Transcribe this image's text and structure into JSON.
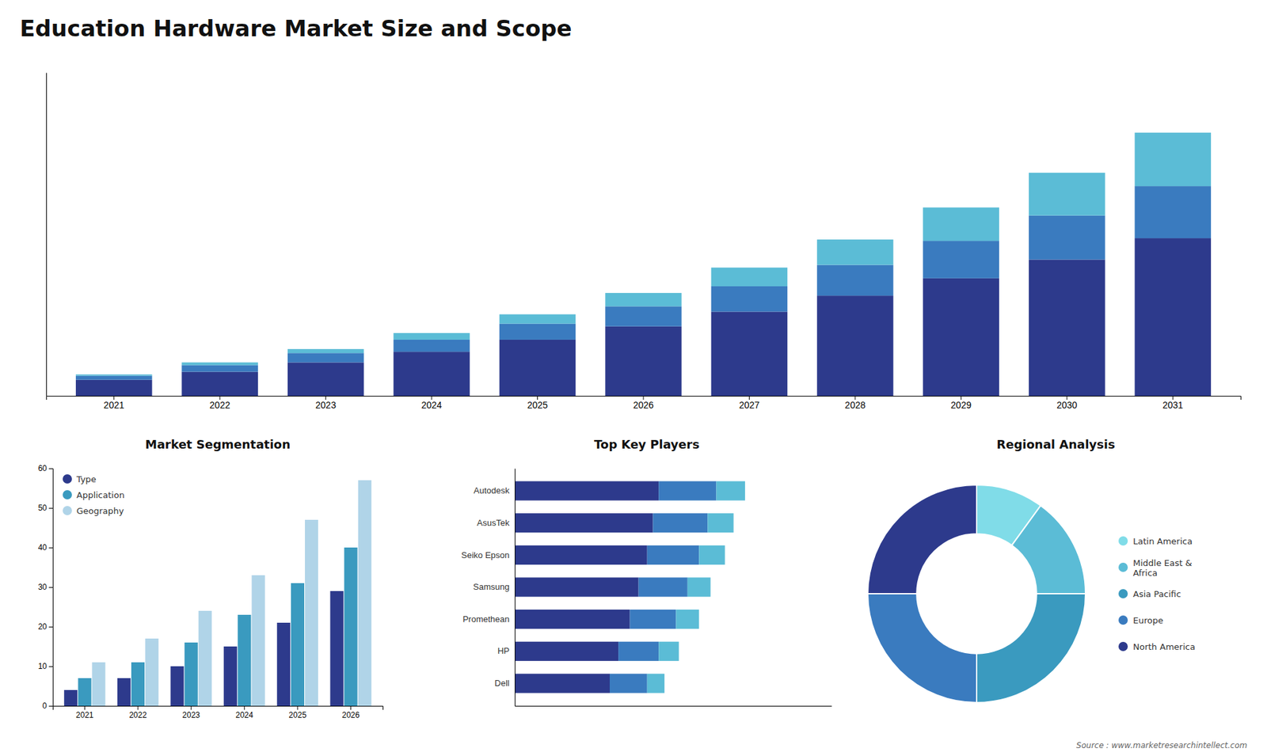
{
  "chart_data": [
    {
      "type": "bar",
      "title": "Education Hardware Market Size and Scope",
      "stacked": true,
      "categories": [
        "2021",
        "2022",
        "2023",
        "2024",
        "2025",
        "2026",
        "2027",
        "2028",
        "2029",
        "2030",
        "2031"
      ],
      "series": [
        {
          "color": "#2d3a8c",
          "values": [
            1.2,
            1.8,
            2.5,
            3.3,
            4.2,
            5.2,
            6.3,
            7.5,
            8.8,
            10.2,
            11.8
          ]
        },
        {
          "color": "#3a7bbf",
          "values": [
            0.3,
            0.5,
            0.7,
            0.9,
            1.2,
            1.5,
            1.9,
            2.3,
            2.8,
            3.3,
            3.9
          ]
        },
        {
          "color": "#5bbcd6",
          "values": [
            0.1,
            0.2,
            0.3,
            0.5,
            0.7,
            1.0,
            1.4,
            1.9,
            2.5,
            3.2,
            4.0
          ]
        }
      ],
      "ylim": [
        0,
        24.2
      ],
      "tick_labels": "x",
      "grid": false,
      "annotations": [
        "Source : www.marketresearchintellect.com"
      ]
    },
    {
      "type": "bar",
      "title": "Market Segmentation",
      "categories": [
        "2021",
        "2022",
        "2023",
        "2024",
        "2025",
        "2026"
      ],
      "series": [
        {
          "name": "Type",
          "color": "#2d3a8c",
          "values": [
            4,
            7,
            10,
            15,
            21,
            29
          ]
        },
        {
          "name": "Application",
          "color": "#3a9abf",
          "values": [
            7,
            11,
            16,
            23,
            31,
            40
          ]
        },
        {
          "name": "Geography",
          "color": "#b0d4e8",
          "values": [
            11,
            17,
            24,
            33,
            47,
            57
          ]
        }
      ],
      "ylim": [
        0,
        60
      ],
      "yticks": [
        0,
        10,
        20,
        30,
        40,
        50,
        60
      ],
      "grid": false,
      "legend": "upper left"
    },
    {
      "type": "bar",
      "title": "Top Key Players",
      "orientation": "horizontal",
      "stacked": true,
      "categories": [
        "Autodesk",
        "AsusTek",
        "Seiko Epson",
        "Samsung",
        "Promethean",
        "HP",
        "Dell"
      ],
      "series": [
        {
          "color": "#2d3a8c",
          "values": [
            0.5,
            0.48,
            0.46,
            0.43,
            0.4,
            0.36,
            0.33
          ]
        },
        {
          "color": "#3a7bbf",
          "values": [
            0.2,
            0.19,
            0.18,
            0.17,
            0.16,
            0.14,
            0.13
          ]
        },
        {
          "color": "#5bbcd6",
          "values": [
            0.1,
            0.09,
            0.09,
            0.08,
            0.08,
            0.07,
            0.06
          ]
        }
      ],
      "xlim": [
        0,
        1.1
      ],
      "tick_labels": "y",
      "grid": false
    },
    {
      "type": "donut",
      "title": "Regional Analysis",
      "categories": [
        "Latin America",
        "Middle East &\nAfrica",
        "Asia Pacific",
        "Europe",
        "North America"
      ],
      "values": [
        0.1,
        0.15,
        0.25,
        0.25,
        0.25
      ],
      "colors": [
        "#80dce8",
        "#5bbcd6",
        "#3a9abf",
        "#3a7bbf",
        "#2d3a8c"
      ],
      "legend": "right"
    }
  ]
}
